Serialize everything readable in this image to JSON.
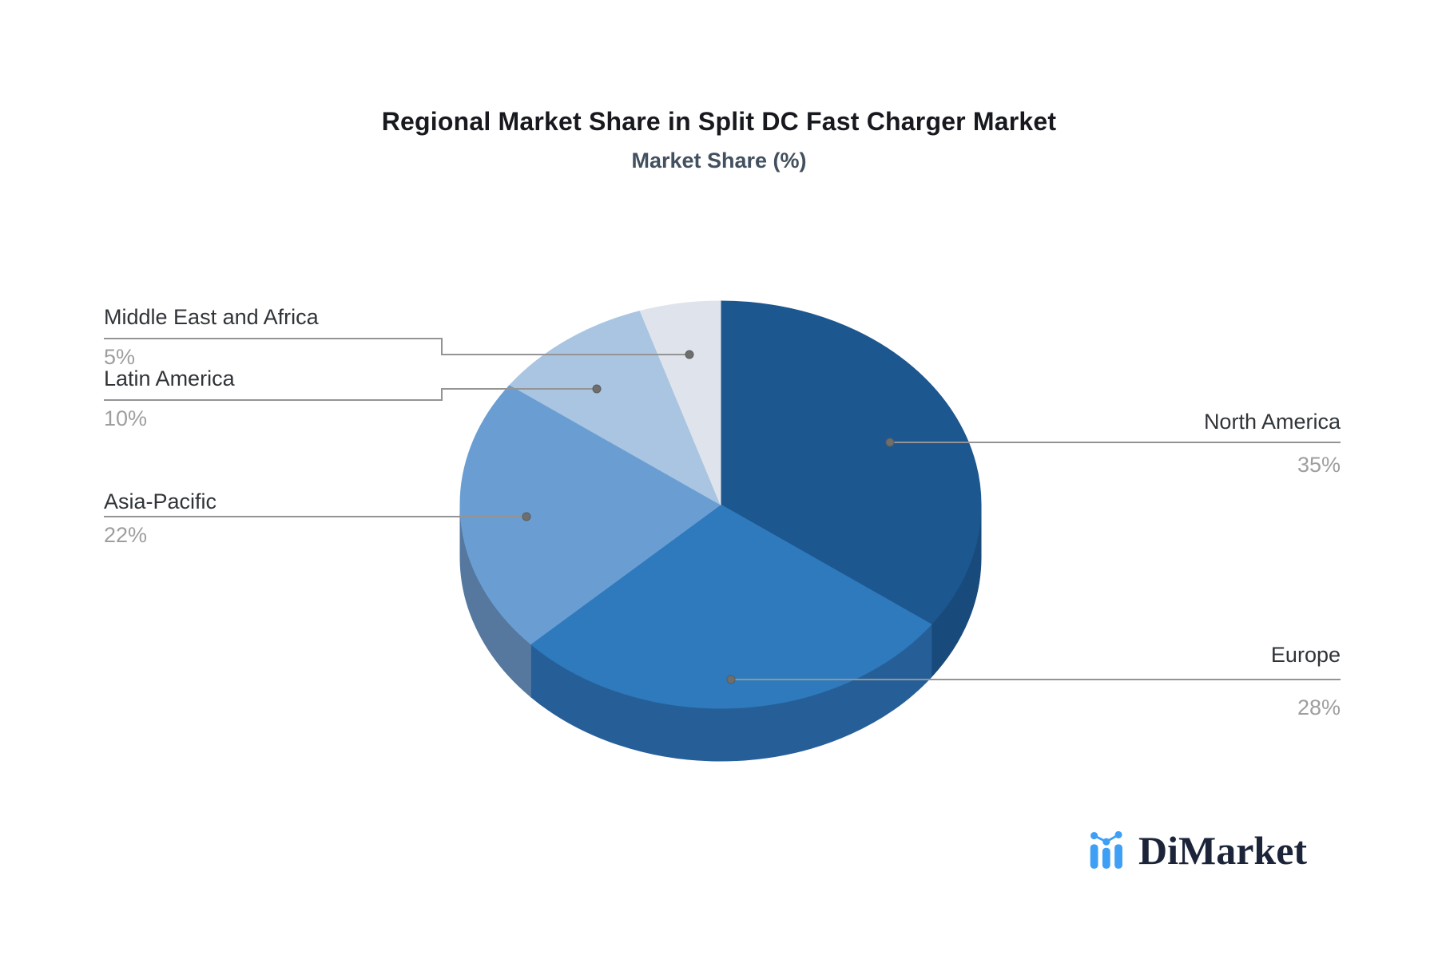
{
  "header": {
    "title": "Regional Market Share in Split DC Fast Charger Market",
    "subtitle": "Market Share (%)"
  },
  "chart_data": {
    "type": "pie",
    "title": "Regional Market Share in Split DC Fast Charger Market",
    "subtitle": "Market Share (%)",
    "unit": "%",
    "direction": "clockwise",
    "start_angle_deg": 0,
    "effect": "3d-depth",
    "legend_position": "callout-labels",
    "slices": [
      {
        "id": "north-america",
        "name": "North America",
        "value": 35,
        "pct_label": "35%",
        "color": "#1d578f",
        "side_color": "#184b7c"
      },
      {
        "id": "europe",
        "name": "Europe",
        "value": 28,
        "pct_label": "28%",
        "color": "#2e7abd",
        "side_color": "#265f98"
      },
      {
        "id": "asia-pacific",
        "name": "Asia-Pacific",
        "value": 22,
        "pct_label": "22%",
        "color": "#6a9ed3",
        "side_color": "#56789f"
      },
      {
        "id": "latin-america",
        "name": "Latin America",
        "value": 10,
        "pct_label": "10%",
        "color": "#a9c5e1",
        "side_color": "#8ea7c0"
      },
      {
        "id": "middle-east-and-africa",
        "name": "Middle East and Africa",
        "value": 5,
        "pct_label": "5%",
        "color": "#dfe4ec",
        "side_color": "#bcc4cf"
      }
    ],
    "label_text_color": "#303438",
    "pct_text_color": "#9e9e9e",
    "leader_line_color": "#949494",
    "leader_dot_color": "#6e6e6e"
  },
  "logo": {
    "text": "DiMarket",
    "icon": "bar-line-chart-icon",
    "icon_color": "#3f9ff5",
    "text_color": "#1b2438"
  }
}
